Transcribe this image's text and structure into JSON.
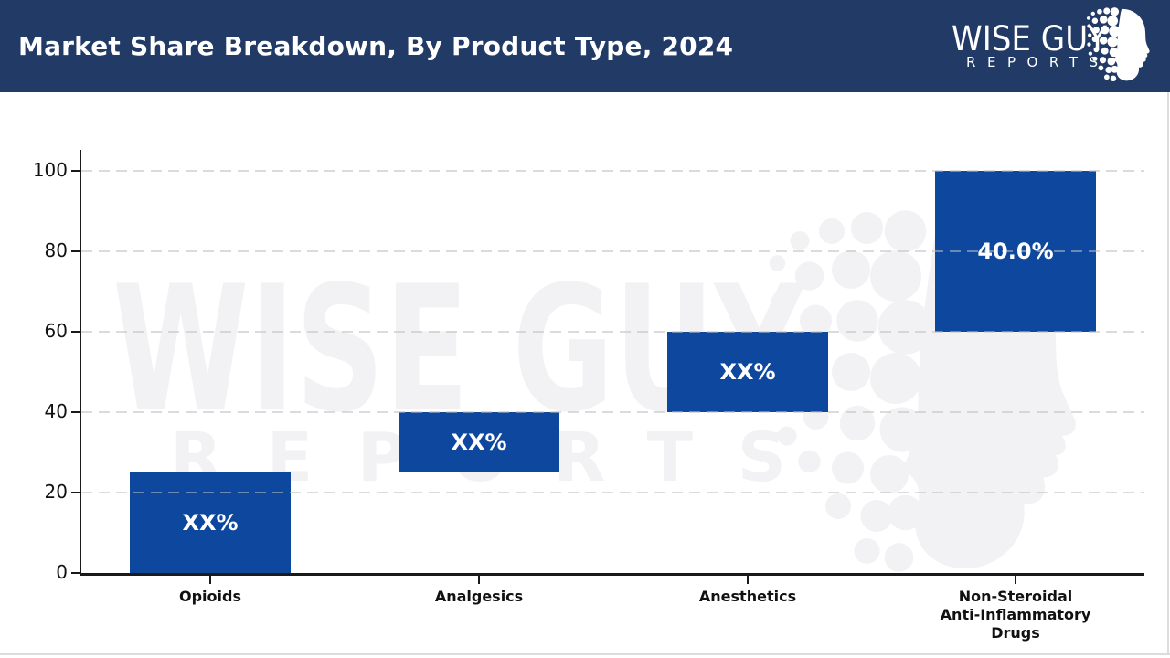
{
  "header": {
    "title": "Market Share Breakdown, By Product Type, 2024",
    "brand_top": "WISE GUY",
    "brand_bottom": "REPORTS"
  },
  "watermark": {
    "text_top": "WISE GUY",
    "text_bottom": "REPORTS"
  },
  "chart_data": {
    "type": "bar",
    "subtype": "waterfall",
    "title": "Market Share Breakdown, By Product Type, 2024",
    "categories": [
      "Opioids",
      "Analgesics",
      "Anesthetics",
      "Non-Steroidal Anti-Inflammatory Drugs"
    ],
    "bars": [
      {
        "category": "Opioids",
        "start": 0,
        "end": 25,
        "label": "XX%",
        "label_lines": [
          "Opioids"
        ]
      },
      {
        "category": "Analgesics",
        "start": 25,
        "end": 40,
        "label": "XX%",
        "label_lines": [
          "Analgesics"
        ]
      },
      {
        "category": "Anesthetics",
        "start": 40,
        "end": 60,
        "label": "XX%",
        "label_lines": [
          "Anesthetics"
        ]
      },
      {
        "category": "Non-Steroidal Anti-Inflammatory Drugs",
        "start": 60,
        "end": 100,
        "label": "40.0%",
        "label_lines": [
          "Non-Steroidal",
          "Anti-Inflammatory",
          "Drugs"
        ]
      }
    ],
    "y_ticks": [
      0,
      20,
      40,
      60,
      80,
      100
    ],
    "ylim": [
      0,
      105
    ],
    "grid": "dashed-horizontal",
    "legend": "none"
  },
  "colors": {
    "header_bg": "#213a66",
    "bar": "#0e489e",
    "grid": "#d9d9d9",
    "axis": "#1a1a1a",
    "watermark": "#f2f2f5",
    "title_text": "#ffffff"
  }
}
